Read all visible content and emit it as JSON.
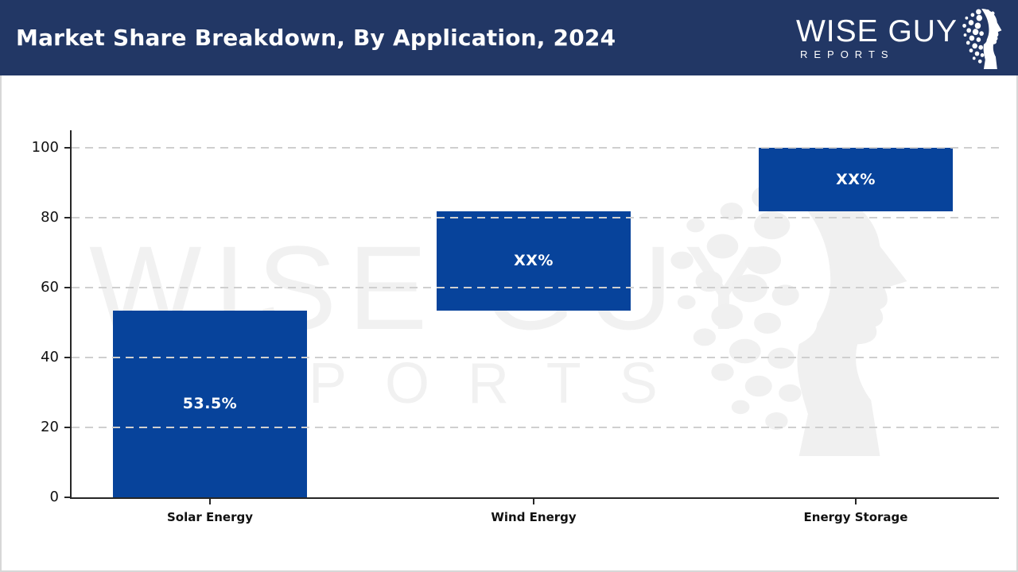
{
  "header": {
    "title": "Market Share Breakdown, By Application, 2024",
    "logo": {
      "wordmark": "WISE GUY",
      "subtext": "REPORTS",
      "icon": "dotted-face-profile-icon"
    }
  },
  "watermark": {
    "line1": "WISE GUY",
    "line2": "REPORTS"
  },
  "colors": {
    "header_bg": "#223765",
    "bar_fill": "#07439b",
    "bar_label": "#ffffff",
    "grid": "#cfcfcf",
    "axis": "#262626",
    "tick_label": "#111111",
    "watermark": "#f1f1f1",
    "border": "#d7d7d7"
  },
  "chart_data": {
    "type": "bar",
    "variant": "waterfall-segments",
    "title": "Market Share Breakdown, By Application, 2024",
    "categories": [
      "Solar Energy",
      "Wind Energy",
      "Energy Storage"
    ],
    "series": [
      {
        "name": "Market share (%)",
        "segments": [
          {
            "category": "Solar Energy",
            "start": 0,
            "end": 53.5,
            "value": 53.5,
            "label": "53.5%"
          },
          {
            "category": "Wind Energy",
            "start": 53.5,
            "end": 81.8,
            "value": 28.3,
            "label": "XX%"
          },
          {
            "category": "Energy Storage",
            "start": 81.8,
            "end": 100,
            "value": 18.2,
            "label": "XX%"
          }
        ]
      }
    ],
    "xlabel": "",
    "ylabel": "",
    "ylim": [
      0,
      105
    ],
    "yticks": [
      0,
      20,
      40,
      60,
      80,
      100
    ],
    "grid": {
      "horizontal": true,
      "style": "dashed",
      "drawn_over_bars": true
    },
    "legend": null
  }
}
